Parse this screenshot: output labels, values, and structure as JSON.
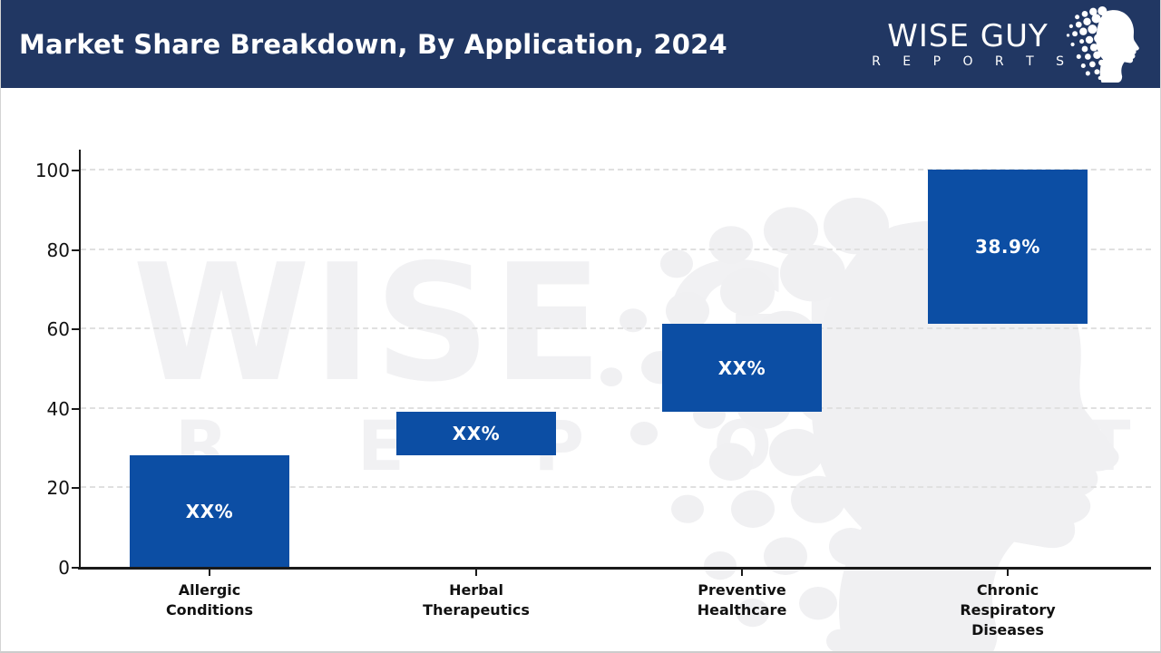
{
  "header": {
    "title": "Market Share Breakdown, By Application, 2024",
    "bg_color": "#213763",
    "logo": {
      "line1": "WISE GUY",
      "line2": "R E P O R T S"
    }
  },
  "watermark": {
    "line1": "WISE GUY",
    "line2": "R E P O R T S"
  },
  "chart_data": {
    "type": "bar",
    "subtype": "floating-waterfall",
    "title": "Market Share Breakdown, By Application, 2024",
    "xlabel": "",
    "ylabel": "",
    "ylim": [
      0,
      105
    ],
    "yticks": [
      0,
      20,
      40,
      60,
      80,
      100
    ],
    "grid": "horizontal-dashed",
    "legend": "none",
    "bar_color": "#0c4ea4",
    "categories": [
      "Allergic\nConditions",
      "Herbal\nTherapeutics",
      "Preventive\nHealthcare",
      "Chronic\nRespiratory\nDiseases"
    ],
    "series": [
      {
        "category": "Allergic Conditions",
        "start": 0,
        "end": 28,
        "label": "XX%"
      },
      {
        "category": "Herbal Therapeutics",
        "start": 28,
        "end": 39,
        "label": "XX%"
      },
      {
        "category": "Preventive Healthcare",
        "start": 39,
        "end": 61.1,
        "label": "XX%"
      },
      {
        "category": "Chronic Respiratory Diseases",
        "start": 61.1,
        "end": 100,
        "label": "38.9%"
      }
    ]
  }
}
